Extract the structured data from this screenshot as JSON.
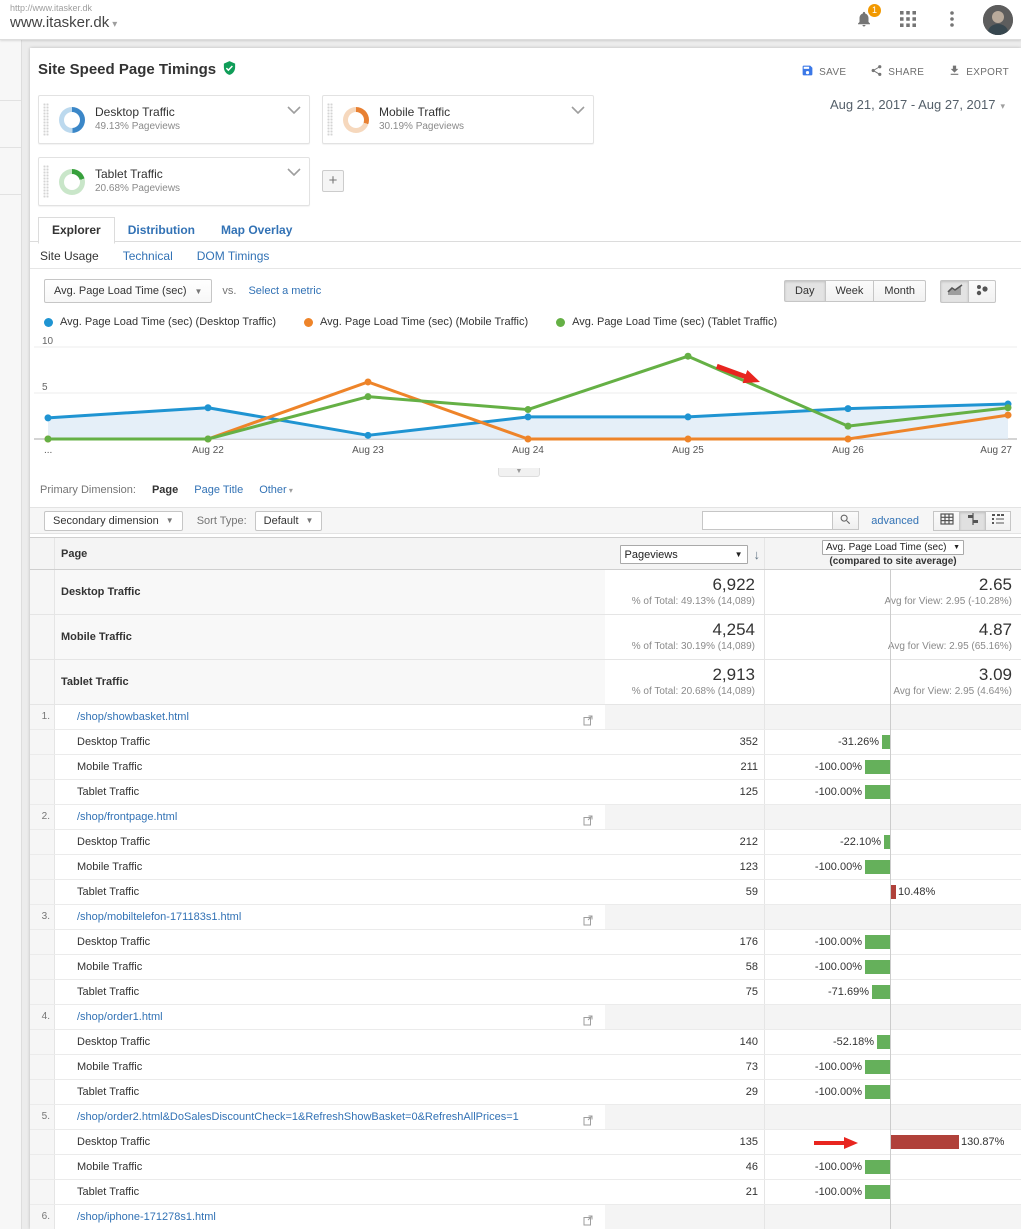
{
  "topbar": {
    "url": "http://www.itasker.dk",
    "account": "www.itasker.dk",
    "notifications_badge": "1"
  },
  "header": {
    "title": "Site Speed Page Timings",
    "save": "SAVE",
    "share": "SHARE",
    "export": "EXPORT",
    "date_range": "Aug 21, 2017 - Aug 27, 2017"
  },
  "segments": [
    {
      "name": "Desktop Traffic",
      "subtitle": "49.13% Pageviews",
      "pct": 49.13,
      "color": "#3b87c8",
      "track": "#bcd9ee"
    },
    {
      "name": "Mobile Traffic",
      "subtitle": "30.19% Pageviews",
      "pct": 30.19,
      "color": "#e88032",
      "track": "#f6d8bd"
    },
    {
      "name": "Tablet Traffic",
      "subtitle": "20.68% Pageviews",
      "pct": 20.68,
      "color": "#37a03c",
      "track": "#c9e6c9"
    }
  ],
  "add_segment_label": "+",
  "tabs": [
    {
      "label": "Explorer",
      "active": true
    },
    {
      "label": "Distribution",
      "active": false
    },
    {
      "label": "Map Overlay",
      "active": false
    }
  ],
  "subtabs": [
    {
      "label": "Site Usage",
      "active": true
    },
    {
      "label": "Technical",
      "active": false
    },
    {
      "label": "DOM Timings",
      "active": false
    }
  ],
  "metric_bar": {
    "metric": "Avg. Page Load Time (sec)",
    "vs": "vs.",
    "select_metric": "Select a metric",
    "granularity": [
      {
        "label": "Day",
        "active": true
      },
      {
        "label": "Week",
        "active": false
      },
      {
        "label": "Month",
        "active": false
      }
    ]
  },
  "chart_data": {
    "type": "line",
    "x": [
      "...",
      "Aug 22",
      "Aug 23",
      "Aug 24",
      "Aug 25",
      "Aug 26",
      "Aug 27"
    ],
    "ylim": [
      0,
      10
    ],
    "yticks": [
      5,
      10
    ],
    "legend_position": "top",
    "series": [
      {
        "name": "Avg. Page Load Time (sec) (Desktop Traffic)",
        "color": "#1f94d2",
        "fill": true,
        "values": [
          2.3,
          3.4,
          0.4,
          2.4,
          2.4,
          3.3,
          3.8
        ]
      },
      {
        "name": "Avg. Page Load Time (sec) (Mobile Traffic)",
        "color": "#ee8429",
        "fill": false,
        "values": [
          0,
          0,
          6.2,
          0,
          0,
          0,
          2.6
        ]
      },
      {
        "name": "Avg. Page Load Time (sec) (Tablet Traffic)",
        "color": "#65b045",
        "fill": false,
        "values": [
          0,
          0,
          4.6,
          3.2,
          9.0,
          1.4,
          3.4
        ]
      }
    ],
    "annotations": [
      {
        "type": "red-arrow",
        "target": "Tablet Traffic peak on Aug 25"
      },
      {
        "type": "red-arrow",
        "target": "Desktop Traffic 130.87% bar in row 5"
      }
    ]
  },
  "primary_dimension": {
    "label": "Primary Dimension:",
    "options": [
      {
        "label": "Page",
        "active": true,
        "caret": false
      },
      {
        "label": "Page Title",
        "active": false,
        "caret": false
      },
      {
        "label": "Other",
        "active": false,
        "caret": true
      }
    ]
  },
  "toolbar": {
    "secondary_dimension": "Secondary dimension",
    "sort_type_label": "Sort Type:",
    "sort_type_value": "Default",
    "search_value": "",
    "advanced": "advanced"
  },
  "table": {
    "columns": {
      "page": "Page",
      "pageviews": "Pageviews",
      "metric": "Avg. Page Load Time (sec)",
      "metric_note": "(compared to site average)"
    },
    "summary": [
      {
        "label": "Desktop Traffic",
        "pageviews": "6,922",
        "pageviews_note": "% of Total: 49.13% (14,089)",
        "value": "2.65",
        "value_note": "Avg for View: 2.95 (-10.28%)"
      },
      {
        "label": "Mobile Traffic",
        "pageviews": "4,254",
        "pageviews_note": "% of Total: 30.19% (14,089)",
        "value": "4.87",
        "value_note": "Avg for View: 2.95 (65.16%)"
      },
      {
        "label": "Tablet Traffic",
        "pageviews": "2,913",
        "pageviews_note": "% of Total: 20.68% (14,089)",
        "value": "3.09",
        "value_note": "Avg for View: 2.95 (4.64%)"
      }
    ],
    "rows": [
      {
        "num": "1.",
        "page": "/shop/showbasket.html",
        "segments": [
          {
            "label": "Desktop Traffic",
            "pageviews": "352",
            "delta_label": "-31.26%",
            "delta": -31.26
          },
          {
            "label": "Mobile Traffic",
            "pageviews": "211",
            "delta_label": "-100.00%",
            "delta": -100
          },
          {
            "label": "Tablet Traffic",
            "pageviews": "125",
            "delta_label": "-100.00%",
            "delta": -100
          }
        ]
      },
      {
        "num": "2.",
        "page": "/shop/frontpage.html",
        "segments": [
          {
            "label": "Desktop Traffic",
            "pageviews": "212",
            "delta_label": "-22.10%",
            "delta": -22.1
          },
          {
            "label": "Mobile Traffic",
            "pageviews": "123",
            "delta_label": "-100.00%",
            "delta": -100
          },
          {
            "label": "Tablet Traffic",
            "pageviews": "59",
            "delta_label": "10.48%",
            "delta": 10.48
          }
        ]
      },
      {
        "num": "3.",
        "page": "/shop/mobiltelefon-171183s1.html",
        "segments": [
          {
            "label": "Desktop Traffic",
            "pageviews": "176",
            "delta_label": "-100.00%",
            "delta": -100
          },
          {
            "label": "Mobile Traffic",
            "pageviews": "58",
            "delta_label": "-100.00%",
            "delta": -100
          },
          {
            "label": "Tablet Traffic",
            "pageviews": "75",
            "delta_label": "-71.69%",
            "delta": -71.69
          }
        ]
      },
      {
        "num": "4.",
        "page": "/shop/order1.html",
        "segments": [
          {
            "label": "Desktop Traffic",
            "pageviews": "140",
            "delta_label": "-52.18%",
            "delta": -52.18
          },
          {
            "label": "Mobile Traffic",
            "pageviews": "73",
            "delta_label": "-100.00%",
            "delta": -100
          },
          {
            "label": "Tablet Traffic",
            "pageviews": "29",
            "delta_label": "-100.00%",
            "delta": -100
          }
        ]
      },
      {
        "num": "5.",
        "page": "/shop/order2.html&DoSalesDiscountCheck=1&RefreshShowBasket=0&RefreshAllPrices=1",
        "segments": [
          {
            "label": "Desktop Traffic",
            "pageviews": "135",
            "delta_label": "130.87%",
            "delta": 130.87,
            "arrow": true
          },
          {
            "label": "Mobile Traffic",
            "pageviews": "46",
            "delta_label": "-100.00%",
            "delta": -100
          },
          {
            "label": "Tablet Traffic",
            "pageviews": "21",
            "delta_label": "-100.00%",
            "delta": -100
          }
        ]
      },
      {
        "num": "6.",
        "page": "/shop/iphone-171278s1.html",
        "segments": []
      }
    ]
  },
  "colors": {
    "positive_bar": "#b0413a",
    "negative_bar": "#65b05b",
    "annotation_arrow": "#e8251f",
    "link_blue": "#3272b5",
    "shield_green": "#0f9d58"
  }
}
